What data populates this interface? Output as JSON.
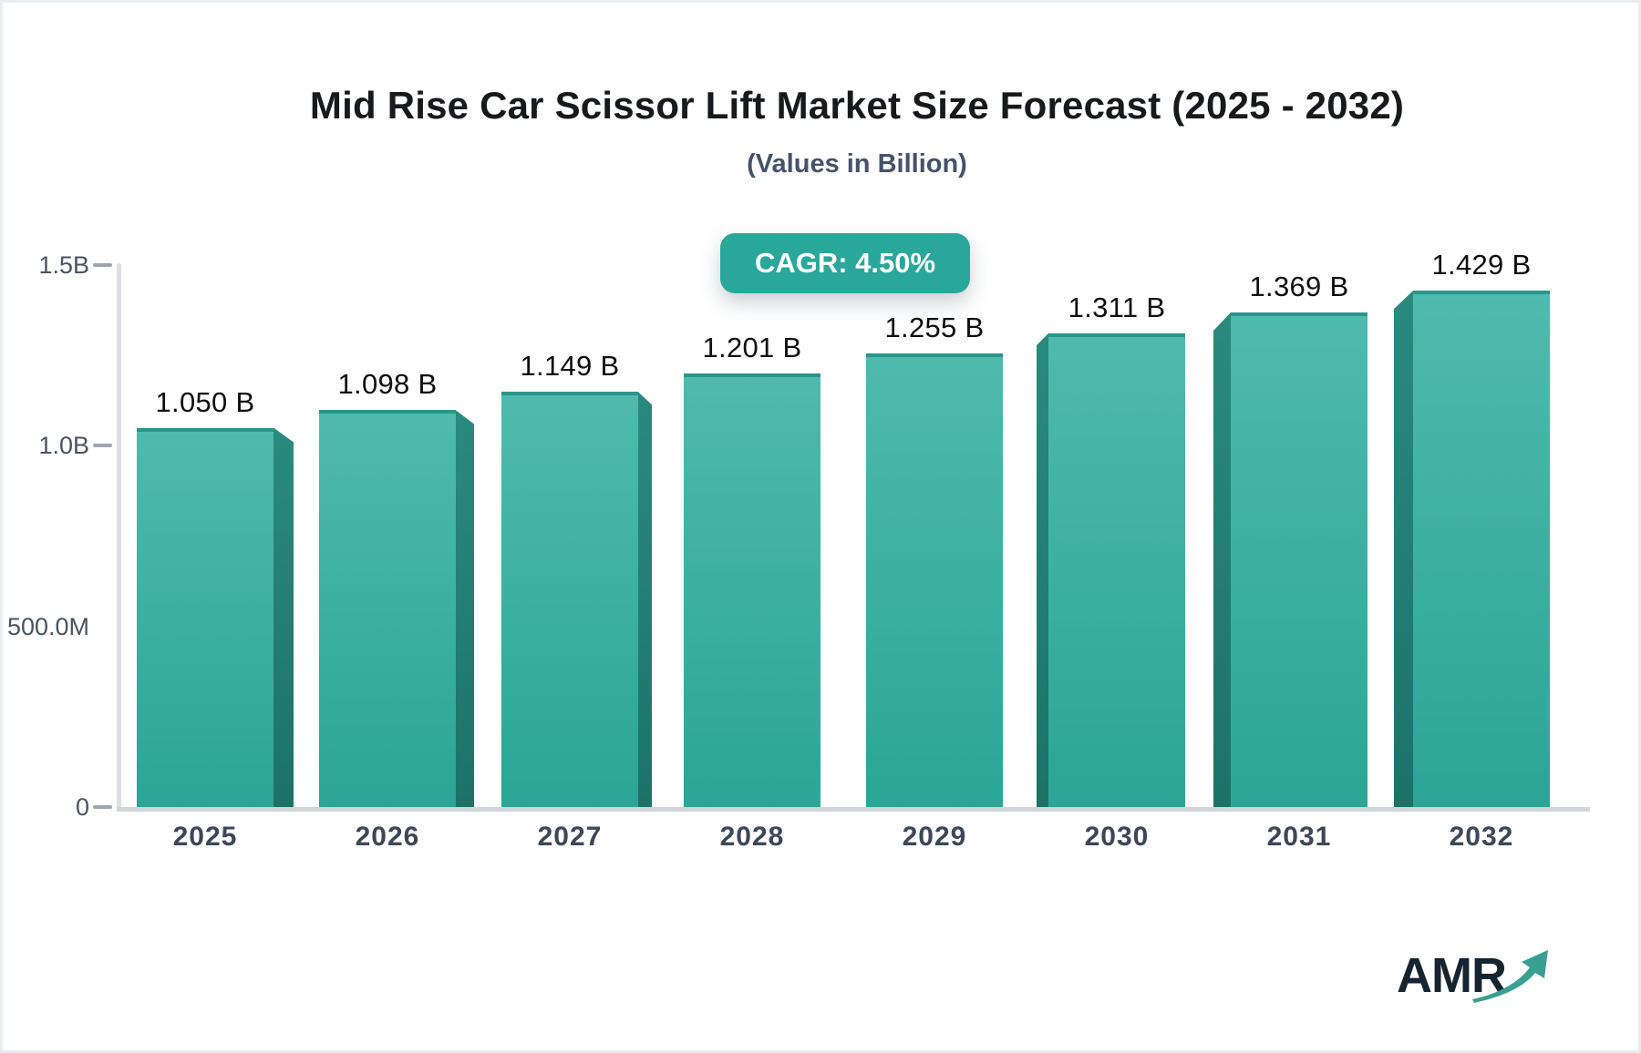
{
  "chart_data": {
    "type": "bar",
    "title": "Mid Rise Car Scissor Lift Market Size Forecast (2025 - 2032)",
    "subtitle": "(Values in Billion)",
    "cagr_label": "CAGR: 4.50%",
    "categories": [
      "2025",
      "2026",
      "2027",
      "2028",
      "2029",
      "2030",
      "2031",
      "2032"
    ],
    "values": [
      1.05,
      1.098,
      1.149,
      1.201,
      1.255,
      1.311,
      1.369,
      1.429
    ],
    "value_labels": [
      "1.050 B",
      "1.098 B",
      "1.149 B",
      "1.201 B",
      "1.255 B",
      "1.311 B",
      "1.369 B",
      "1.429 B"
    ],
    "xlabel": "",
    "ylabel": "",
    "ylim": [
      0,
      1.5
    ],
    "grid": "off",
    "legend": "none",
    "y_ticks": [
      {
        "label": "0",
        "value": 0,
        "dash": true
      },
      {
        "label": "500.0M",
        "value": 0.5,
        "dash": false
      },
      {
        "label": "1.0B",
        "value": 1.0,
        "dash": true
      },
      {
        "label": "1.5B",
        "value": 1.5,
        "dash": true
      }
    ],
    "colors": {
      "bar_top": "#4fbaad",
      "bar_bottom": "#2ba596",
      "bar_side": "#227d72",
      "bar_top_edge": "#2b9589",
      "badge_bg": "#2aa79b",
      "axis": "#d2d5d9"
    }
  },
  "logo": {
    "text": "AMR",
    "arrow_icon": "growth-arrow",
    "text_color": "#152430",
    "arrow_color": "#3a9f93"
  }
}
